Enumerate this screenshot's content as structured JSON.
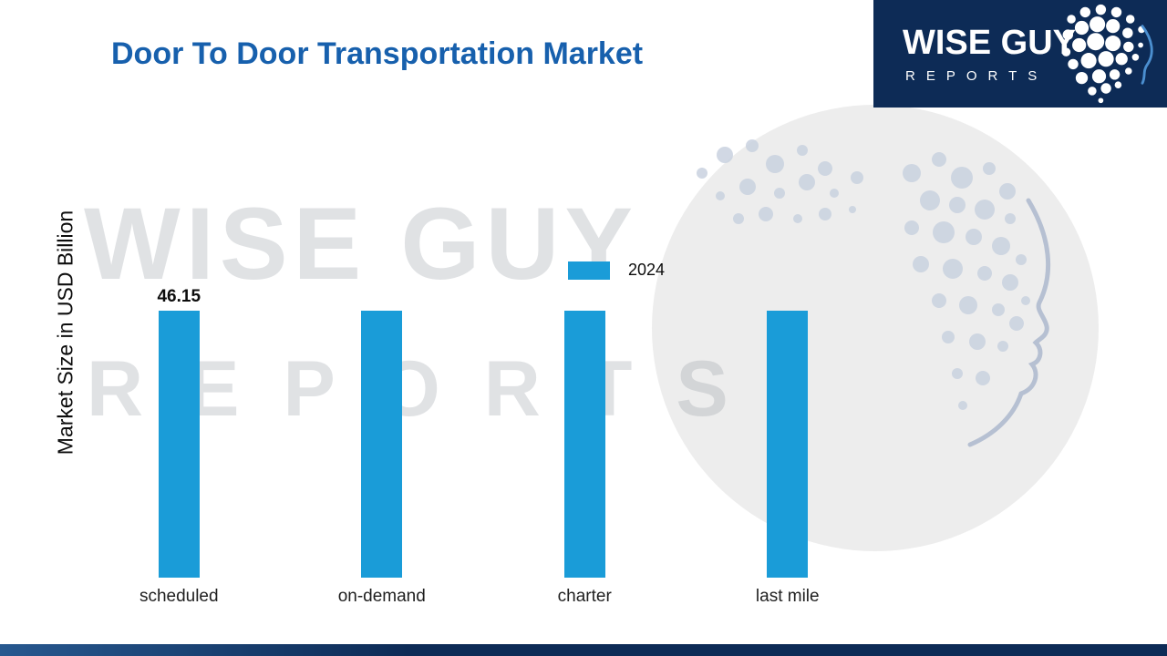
{
  "page": {
    "title": "Door To Door Transportation Market"
  },
  "logo": {
    "line1": "WISE GUY",
    "line2": "REPORTS"
  },
  "watermark": {
    "line1": "WISE GUY",
    "line2": "REPORTS"
  },
  "colors": {
    "bar": "#1a9cd8",
    "navy": "#0d2b56",
    "title_blue": "#1760ad"
  },
  "chart_data": {
    "type": "bar",
    "title": "Door To Door Transportation Market",
    "ylabel": "Market Size in USD Billion",
    "categories": [
      "scheduled",
      "on-demand",
      "charter",
      "last mile"
    ],
    "series": [
      {
        "name": "2024",
        "values": [
          46.15,
          46.15,
          46.15,
          46.15
        ]
      }
    ],
    "data_labels": [
      "46.15",
      null,
      null,
      null
    ],
    "ylim": [
      0,
      52
    ],
    "grid": false,
    "legend_position": "top-center"
  }
}
